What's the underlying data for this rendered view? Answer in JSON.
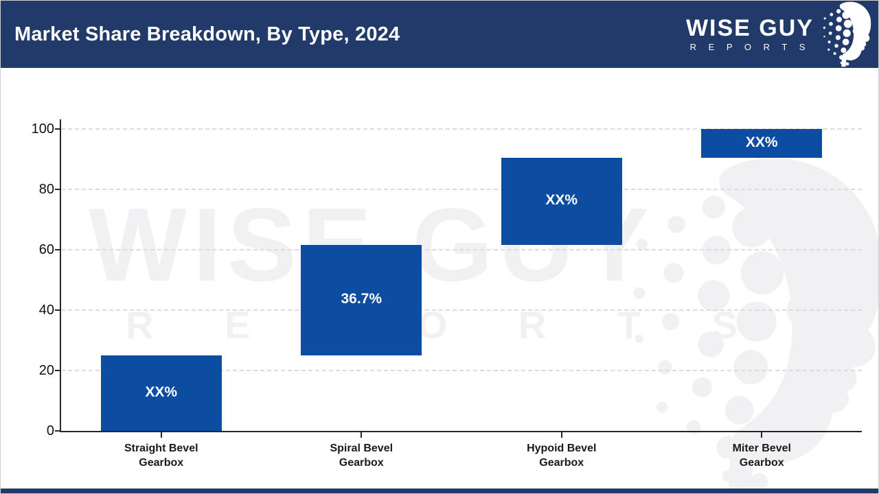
{
  "header": {
    "title": "Market Share Breakdown, By Type, 2024",
    "logo": {
      "line1": "WISE GUY",
      "line2": "R E P O R T S"
    }
  },
  "watermark": {
    "line1": "WISE GUY",
    "line2": "R E P O R T S"
  },
  "chart_data": {
    "type": "bar",
    "variant": "floating-cumulative",
    "title": "Market Share Breakdown, By Type, 2024",
    "categories": [
      "Straight Bevel Gearbox",
      "Spiral Bevel Gearbox",
      "Hypoid Bevel Gearbox",
      "Miter Bevel Gearbox"
    ],
    "category_lines": [
      [
        "Straight Bevel",
        "Gearbox"
      ],
      [
        "Spiral Bevel",
        "Gearbox"
      ],
      [
        "Hypoid Bevel",
        "Gearbox"
      ],
      [
        "Miter Bevel",
        "Gearbox"
      ]
    ],
    "segments": [
      {
        "category": "Straight Bevel Gearbox",
        "start": 0,
        "end": 25,
        "label": "XX%"
      },
      {
        "category": "Spiral Bevel Gearbox",
        "start": 25,
        "end": 61.7,
        "label": "36.7%"
      },
      {
        "category": "Hypoid Bevel Gearbox",
        "start": 61.7,
        "end": 90.5,
        "label": "XX%"
      },
      {
        "category": "Miter Bevel Gearbox",
        "start": 90.5,
        "end": 100,
        "label": "XX%"
      }
    ],
    "ylim": [
      0,
      100
    ],
    "yticks": [
      0,
      20,
      40,
      60,
      80,
      100
    ],
    "grid": "horizontal-dashed",
    "legend": "none",
    "bar_color": "#0d4da1"
  },
  "colors": {
    "header_bg": "#223a6a",
    "footer_bg": "#223a6a",
    "bar": "#0d4da1",
    "gridline": "#dcdcdc",
    "axis": "#262626",
    "watermark": "#f1f1f3",
    "title_text": "#ffffff"
  }
}
